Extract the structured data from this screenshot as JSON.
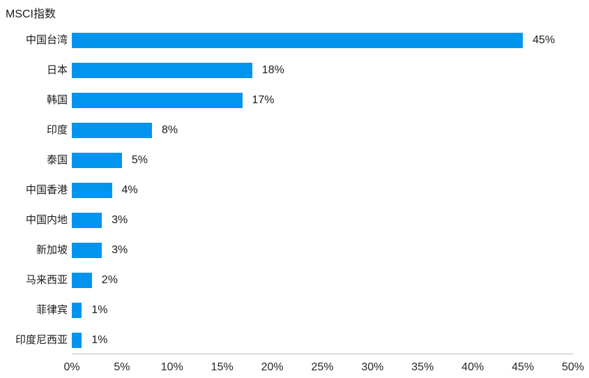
{
  "title": "MSCI指数",
  "colors": {
    "bar": "#0294EE",
    "axis_line": "#BFBFBF",
    "text": "#1A1A1A"
  },
  "chart_data": {
    "type": "bar",
    "orientation": "horizontal",
    "title": "MSCI指数",
    "categories": [
      "中国台湾",
      "日本",
      "韩国",
      "印度",
      "泰国",
      "中国香港",
      "中国内地",
      "新加坡",
      "马来西亚",
      "菲律宾",
      "印度尼西亚"
    ],
    "values": [
      45,
      18,
      17,
      8,
      5,
      4,
      3,
      3,
      2,
      1,
      1
    ],
    "value_labels": [
      "45%",
      "18%",
      "17%",
      "8%",
      "5%",
      "4%",
      "3%",
      "3%",
      "2%",
      "1%",
      "1%"
    ],
    "x_ticks": [
      "0%",
      "5%",
      "10%",
      "15%",
      "20%",
      "25%",
      "30%",
      "35%",
      "40%",
      "45%",
      "50%"
    ],
    "xlim": [
      0,
      50
    ],
    "xlabel": "",
    "ylabel": "",
    "grid": false,
    "legend": false
  }
}
